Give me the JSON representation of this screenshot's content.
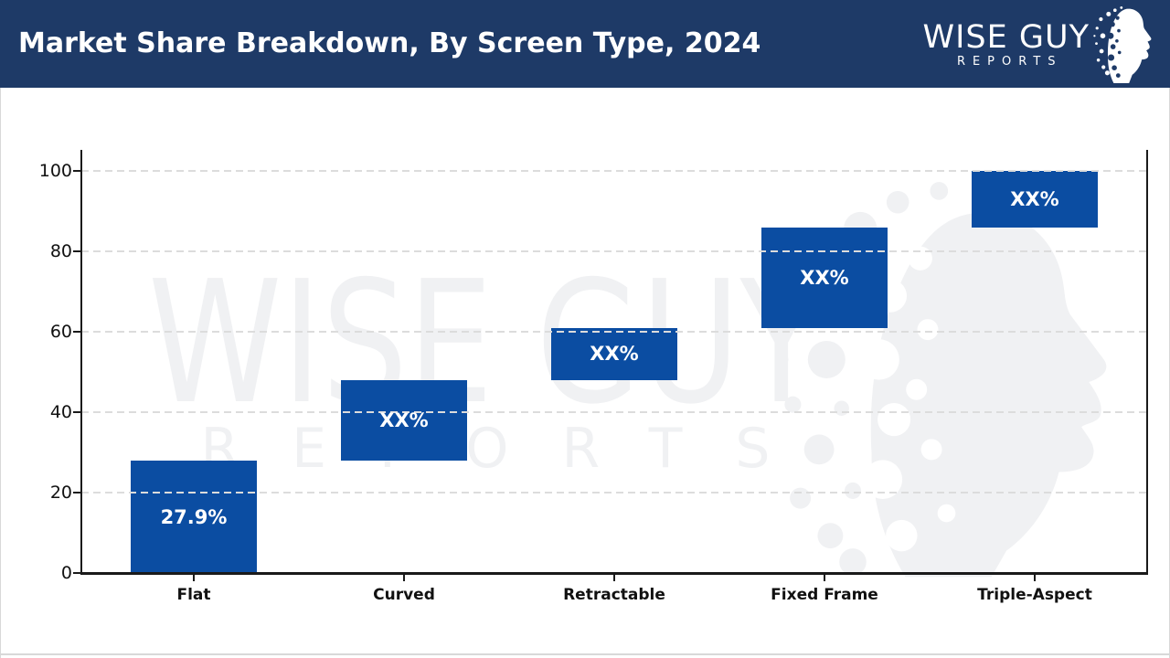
{
  "header": {
    "title": "Market Share Breakdown, By Screen Type, 2024",
    "logo": {
      "line1": "WISE GUY",
      "line2": "REPORTS"
    }
  },
  "watermark": {
    "line1": "WISE GUY",
    "line2": "REPORTS"
  },
  "colors": {
    "header_bg": "#1e3a67",
    "bar": "#0b4da2",
    "bar_label": "#ffffff",
    "grid": "#dcdcdc",
    "axis": "#1a1a1a",
    "text": "#111111",
    "watermark": "#f0f1f3",
    "edge": "#d8d8d8"
  },
  "chart_data": {
    "type": "bar",
    "subtype": "waterfall",
    "title": "Market Share Breakdown, By Screen Type, 2024",
    "categories": [
      "Flat",
      "Curved",
      "Retractable",
      "Fixed Frame",
      "Triple-Aspect"
    ],
    "series": [
      {
        "name": "Market Share",
        "segments": [
          {
            "start": 0,
            "end": 27.9,
            "label": "27.9%"
          },
          {
            "start": 27.9,
            "end": 48,
            "label": "XX%"
          },
          {
            "start": 48,
            "end": 61,
            "label": "XX%"
          },
          {
            "start": 61,
            "end": 86,
            "label": "XX%"
          },
          {
            "start": 86,
            "end": 100,
            "label": "XX%"
          }
        ]
      }
    ],
    "xlabel": "",
    "ylabel": "",
    "ylim": [
      0,
      100
    ],
    "yticks": [
      0,
      20,
      40,
      60,
      80,
      100
    ],
    "grid": "horizontal-dashed-over-bars",
    "legend": false,
    "bar_color": "#0b4da2",
    "label_color": "#ffffff"
  }
}
